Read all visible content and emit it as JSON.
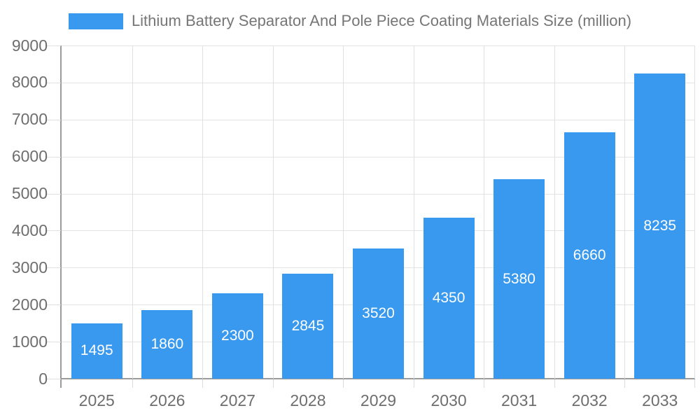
{
  "chart_data": {
    "type": "bar",
    "title": "Lithium Battery Separator And Pole Piece Coating Materials Size (million)",
    "categories": [
      "2025",
      "2026",
      "2027",
      "2028",
      "2029",
      "2030",
      "2031",
      "2032",
      "2033"
    ],
    "values": [
      1495,
      1860,
      2300,
      2845,
      3520,
      4350,
      5380,
      6660,
      8235
    ],
    "xlabel": "",
    "ylabel": "",
    "ylim": [
      0,
      9000
    ],
    "ytick_step": 1000,
    "ytick_labels": [
      "0",
      "1000",
      "2000",
      "3000",
      "4000",
      "5000",
      "6000",
      "7000",
      "8000",
      "9000"
    ],
    "grid": true,
    "legend_position": "top",
    "bar_color": "#3999EE",
    "value_label_color": "#ffffff",
    "axis_line_color": "#9b9b9b",
    "gridline_color": "#e4e4e4",
    "axis_label_color": "#6e6e6e",
    "title_color": "#767676",
    "background_color": "#ffffff"
  }
}
